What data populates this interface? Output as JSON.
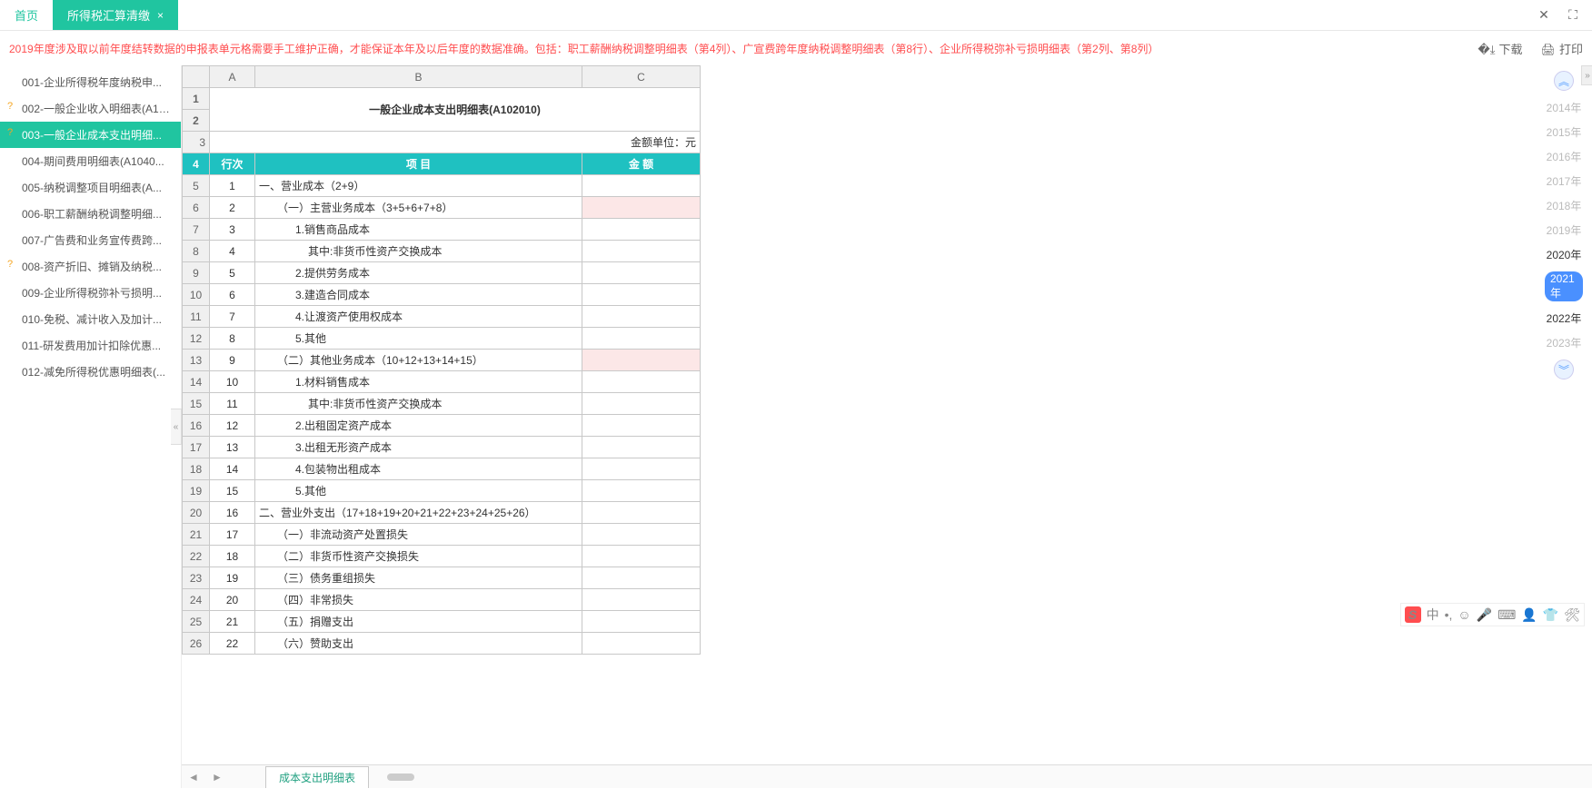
{
  "tabs": {
    "home": "首页",
    "current": "所得税汇算清缴"
  },
  "warning": "2019年度涉及取以前年度结转数据的申报表单元格需要手工维护正确，才能保证本年及以后年度的数据准确。包括：职工薪酬纳税调整明细表（第4列）、广宣费跨年度纳税调整明细表（第8行）、企业所得税弥补亏损明细表（第2列、第8列）",
  "toolbar": {
    "download": "下载",
    "print": "打印"
  },
  "leftnav": [
    {
      "id": "001",
      "label": "001-企业所得税年度纳税申...",
      "q": false
    },
    {
      "id": "002",
      "label": "002-一般企业收入明细表(A10...",
      "q": true
    },
    {
      "id": "003",
      "label": "003-一般企业成本支出明细...",
      "q": true,
      "selected": true
    },
    {
      "id": "004",
      "label": "004-期间费用明细表(A1040...",
      "q": false
    },
    {
      "id": "005",
      "label": "005-纳税调整项目明细表(A...",
      "q": false
    },
    {
      "id": "006",
      "label": "006-职工薪酬纳税调整明细...",
      "q": false
    },
    {
      "id": "007",
      "label": "007-广告费和业务宣传费跨...",
      "q": false
    },
    {
      "id": "008",
      "label": "008-资产折旧、摊销及纳税...",
      "q": true
    },
    {
      "id": "009",
      "label": "009-企业所得税弥补亏损明...",
      "q": false
    },
    {
      "id": "010",
      "label": "010-免税、减计收入及加计...",
      "q": false
    },
    {
      "id": "011",
      "label": "011-研发费用加计扣除优惠...",
      "q": false
    },
    {
      "id": "012",
      "label": "012-减免所得税优惠明细表(...",
      "q": false
    }
  ],
  "sheet": {
    "title": "一般企业成本支出明细表(A102010)",
    "unit_label": "金额单位：元",
    "col_headers": {
      "line": "行次",
      "item": "项        目",
      "amount": "金        额"
    },
    "tab_name": "成本支出明细表",
    "rows": [
      {
        "n": 1,
        "line": "1",
        "text": "一、营业成本（2+9）",
        "indent": 0,
        "pink": false
      },
      {
        "n": 2,
        "line": "2",
        "text": "（一）主营业务成本（3+5+6+7+8）",
        "indent": 1,
        "pink": true
      },
      {
        "n": 3,
        "line": "3",
        "text": "1.销售商品成本",
        "indent": 2,
        "pink": false
      },
      {
        "n": 4,
        "line": "4",
        "text": "其中:非货币性资产交换成本",
        "indent": 3,
        "pink": false
      },
      {
        "n": 5,
        "line": "5",
        "text": "2.提供劳务成本",
        "indent": 2,
        "pink": false
      },
      {
        "n": 6,
        "line": "6",
        "text": "3.建造合同成本",
        "indent": 2,
        "pink": false
      },
      {
        "n": 7,
        "line": "7",
        "text": "4.让渡资产使用权成本",
        "indent": 2,
        "pink": false
      },
      {
        "n": 8,
        "line": "8",
        "text": "5.其他",
        "indent": 2,
        "pink": false
      },
      {
        "n": 9,
        "line": "9",
        "text": "（二）其他业务成本（10+12+13+14+15）",
        "indent": 1,
        "pink": true
      },
      {
        "n": 10,
        "line": "10",
        "text": "1.材料销售成本",
        "indent": 2,
        "pink": false
      },
      {
        "n": 11,
        "line": "11",
        "text": "其中:非货币性资产交换成本",
        "indent": 3,
        "pink": false
      },
      {
        "n": 12,
        "line": "12",
        "text": "2.出租固定资产成本",
        "indent": 2,
        "pink": false
      },
      {
        "n": 13,
        "line": "13",
        "text": "3.出租无形资产成本",
        "indent": 2,
        "pink": false
      },
      {
        "n": 14,
        "line": "14",
        "text": "4.包装物出租成本",
        "indent": 2,
        "pink": false
      },
      {
        "n": 15,
        "line": "15",
        "text": "5.其他",
        "indent": 2,
        "pink": false
      },
      {
        "n": 16,
        "line": "16",
        "text": "二、营业外支出（17+18+19+20+21+22+23+24+25+26）",
        "indent": 0,
        "pink": false
      },
      {
        "n": 17,
        "line": "17",
        "text": "（一）非流动资产处置损失",
        "indent": 1,
        "pink": false
      },
      {
        "n": 18,
        "line": "18",
        "text": "（二）非货币性资产交换损失",
        "indent": 1,
        "pink": false
      },
      {
        "n": 19,
        "line": "19",
        "text": "（三）债务重组损失",
        "indent": 1,
        "pink": false
      },
      {
        "n": 20,
        "line": "20",
        "text": "（四）非常损失",
        "indent": 1,
        "pink": false
      },
      {
        "n": 21,
        "line": "21",
        "text": "（五）捐赠支出",
        "indent": 1,
        "pink": false
      },
      {
        "n": 22,
        "line": "22",
        "text": "（六）赞助支出",
        "indent": 1,
        "pink": false
      }
    ]
  },
  "years": [
    "2014年",
    "2015年",
    "2016年",
    "2017年",
    "2018年",
    "2019年",
    "2020年",
    "2021年",
    "2022年",
    "2023年"
  ],
  "year_selected": "2021年",
  "ime": {
    "s": "S",
    "lang": "中"
  }
}
